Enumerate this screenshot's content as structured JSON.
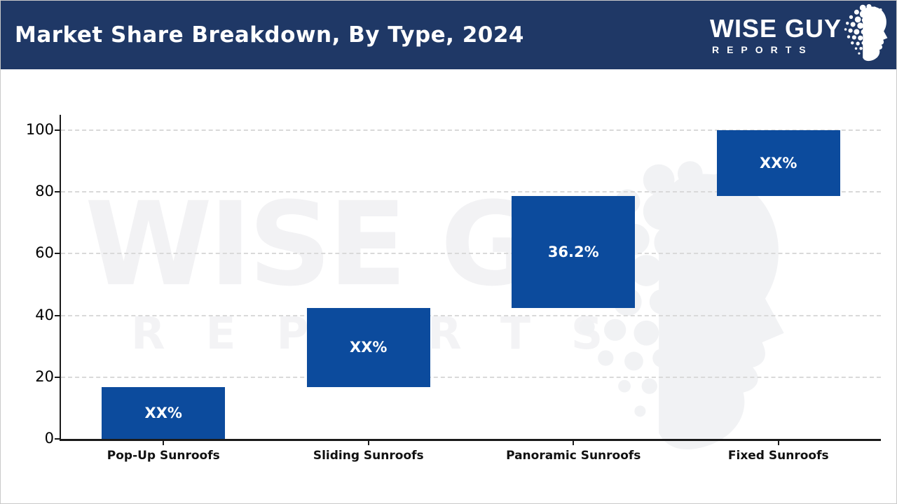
{
  "header": {
    "title": "Market Share Breakdown, By Type, 2024",
    "logo": {
      "wordmark": "WISE GUY",
      "subtitle": "REPORTS"
    }
  },
  "watermark": {
    "wordmark": "WISE GU",
    "subtitle": "REPORTS"
  },
  "chart_data": {
    "type": "bar",
    "variant": "waterfall",
    "title": "Market Share Breakdown, By Type, 2024",
    "categories": [
      "Pop-Up Sunroofs",
      "Sliding Sunroofs",
      "Panoramic Sunroofs",
      "Fixed Sunroofs"
    ],
    "segments": [
      {
        "category": "Pop-Up Sunroofs",
        "start": 0,
        "end": 16.8,
        "label": "XX%"
      },
      {
        "category": "Sliding Sunroofs",
        "start": 16.8,
        "end": 42.5,
        "label": "XX%"
      },
      {
        "category": "Panoramic Sunroofs",
        "start": 42.5,
        "end": 78.7,
        "label": "36.2%"
      },
      {
        "category": "Fixed Sunroofs",
        "start": 78.7,
        "end": 100,
        "label": "XX%"
      }
    ],
    "yticks": [
      0,
      20,
      40,
      60,
      80,
      100
    ],
    "ylim": [
      0,
      105
    ],
    "xlabel": "",
    "ylabel": "",
    "grid": "dashed-horizontal",
    "legend": "none",
    "bar_color": "#0c4b9d",
    "axis_color": "#1a1a1a",
    "gridline_color": "#d9d9d9",
    "header_color": "#1f3866",
    "watermark_color": "#f2f2f4"
  }
}
